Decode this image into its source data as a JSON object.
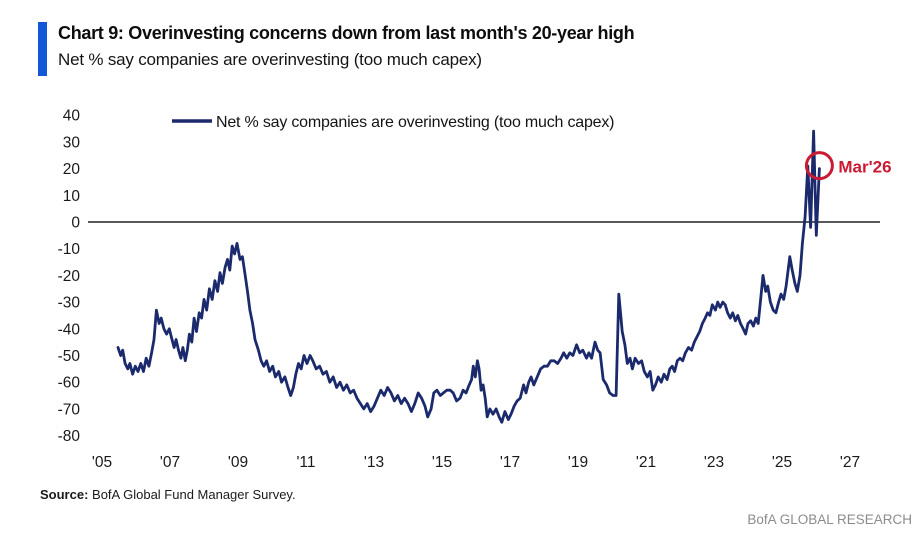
{
  "header": {
    "title": "Chart 9: Overinvesting concerns down from last month's 20-year high",
    "subtitle": "Net % say companies are overinvesting (too much capex)",
    "accent_color": "#1257d8"
  },
  "chart_data": {
    "type": "line",
    "title": "Chart 9: Overinvesting concerns down from last month's 20-year high",
    "subtitle": "Net % say companies are overinvesting (too much capex)",
    "xlabel": "",
    "ylabel": "Net %",
    "ylim": [
      -80,
      40
    ],
    "xlim": [
      2004.9,
      2027.5
    ],
    "grid": false,
    "legend_position": "top",
    "legend_label": "Net % say companies are overinvesting (too much capex)",
    "line_color": "#1b2a6c",
    "zero_line": true,
    "zero_line_color": "#58595b",
    "y_ticks": [
      40,
      30,
      20,
      10,
      0,
      -10,
      -20,
      -30,
      -40,
      -50,
      -60,
      -70,
      -80
    ],
    "x_ticks": [
      "'05",
      "'07",
      "'09",
      "'11",
      "'13",
      "'15",
      "'17",
      "'19",
      "'21",
      "'23",
      "'25",
      "'27"
    ],
    "x_tick_years": [
      2005,
      2007,
      2009,
      2011,
      2013,
      2015,
      2017,
      2019,
      2021,
      2023,
      2025,
      2027
    ],
    "annotation": {
      "label": "Mar'26",
      "x": 2026.1,
      "y": 20,
      "color": "#cb1b34"
    },
    "series": [
      {
        "name": "Net % say companies are overinvesting (too much capex)",
        "points": [
          [
            2005.47,
            -47
          ],
          [
            2005.55,
            -50
          ],
          [
            2005.61,
            -48
          ],
          [
            2005.68,
            -53
          ],
          [
            2005.76,
            -55
          ],
          [
            2005.82,
            -53
          ],
          [
            2005.9,
            -57
          ],
          [
            2005.98,
            -54
          ],
          [
            2006.06,
            -56
          ],
          [
            2006.14,
            -53
          ],
          [
            2006.22,
            -56
          ],
          [
            2006.3,
            -51
          ],
          [
            2006.38,
            -54
          ],
          [
            2006.46,
            -49
          ],
          [
            2006.53,
            -44
          ],
          [
            2006.6,
            -33
          ],
          [
            2006.68,
            -38
          ],
          [
            2006.74,
            -36
          ],
          [
            2006.82,
            -40
          ],
          [
            2006.9,
            -42
          ],
          [
            2006.98,
            -40
          ],
          [
            2007.06,
            -44
          ],
          [
            2007.12,
            -47
          ],
          [
            2007.18,
            -44
          ],
          [
            2007.25,
            -48
          ],
          [
            2007.32,
            -51
          ],
          [
            2007.38,
            -47
          ],
          [
            2007.45,
            -52
          ],
          [
            2007.51,
            -48
          ],
          [
            2007.57,
            -42
          ],
          [
            2007.64,
            -45
          ],
          [
            2007.71,
            -36
          ],
          [
            2007.78,
            -41
          ],
          [
            2007.86,
            -34
          ],
          [
            2007.93,
            -36
          ],
          [
            2008.0,
            -29
          ],
          [
            2008.08,
            -33
          ],
          [
            2008.16,
            -25
          ],
          [
            2008.24,
            -29
          ],
          [
            2008.32,
            -22
          ],
          [
            2008.4,
            -26
          ],
          [
            2008.47,
            -19
          ],
          [
            2008.54,
            -23
          ],
          [
            2008.62,
            -17
          ],
          [
            2008.69,
            -14
          ],
          [
            2008.76,
            -18
          ],
          [
            2008.83,
            -9
          ],
          [
            2008.9,
            -12
          ],
          [
            2008.97,
            -8
          ],
          [
            2009.06,
            -14
          ],
          [
            2009.13,
            -13
          ],
          [
            2009.2,
            -19
          ],
          [
            2009.28,
            -26
          ],
          [
            2009.35,
            -33
          ],
          [
            2009.43,
            -38
          ],
          [
            2009.5,
            -44
          ],
          [
            2009.6,
            -48
          ],
          [
            2009.68,
            -52
          ],
          [
            2009.76,
            -54
          ],
          [
            2009.84,
            -52
          ],
          [
            2009.93,
            -56
          ],
          [
            2010.02,
            -54
          ],
          [
            2010.1,
            -58
          ],
          [
            2010.2,
            -56
          ],
          [
            2010.28,
            -60
          ],
          [
            2010.38,
            -58
          ],
          [
            2010.47,
            -62
          ],
          [
            2010.55,
            -65
          ],
          [
            2010.63,
            -62
          ],
          [
            2010.7,
            -57
          ],
          [
            2010.78,
            -53
          ],
          [
            2010.86,
            -55
          ],
          [
            2010.94,
            -50
          ],
          [
            2011.03,
            -53
          ],
          [
            2011.12,
            -50
          ],
          [
            2011.2,
            -52
          ],
          [
            2011.3,
            -55
          ],
          [
            2011.4,
            -54
          ],
          [
            2011.5,
            -57
          ],
          [
            2011.6,
            -56
          ],
          [
            2011.7,
            -60
          ],
          [
            2011.8,
            -58
          ],
          [
            2011.9,
            -62
          ],
          [
            2012.0,
            -60
          ],
          [
            2012.1,
            -63
          ],
          [
            2012.2,
            -61
          ],
          [
            2012.3,
            -64
          ],
          [
            2012.4,
            -63
          ],
          [
            2012.5,
            -66
          ],
          [
            2012.6,
            -68
          ],
          [
            2012.7,
            -70
          ],
          [
            2012.8,
            -68
          ],
          [
            2012.9,
            -71
          ],
          [
            2013.0,
            -69
          ],
          [
            2013.1,
            -66
          ],
          [
            2013.2,
            -63
          ],
          [
            2013.3,
            -65
          ],
          [
            2013.4,
            -62
          ],
          [
            2013.5,
            -64
          ],
          [
            2013.6,
            -67
          ],
          [
            2013.7,
            -65
          ],
          [
            2013.8,
            -68
          ],
          [
            2013.9,
            -66
          ],
          [
            2014.0,
            -68
          ],
          [
            2014.1,
            -71
          ],
          [
            2014.2,
            -68
          ],
          [
            2014.3,
            -64
          ],
          [
            2014.4,
            -66
          ],
          [
            2014.5,
            -69
          ],
          [
            2014.58,
            -73
          ],
          [
            2014.68,
            -70
          ],
          [
            2014.76,
            -64
          ],
          [
            2014.85,
            -63
          ],
          [
            2014.95,
            -65
          ],
          [
            2015.04,
            -64
          ],
          [
            2015.14,
            -63
          ],
          [
            2015.24,
            -63
          ],
          [
            2015.33,
            -64
          ],
          [
            2015.43,
            -67
          ],
          [
            2015.53,
            -66
          ],
          [
            2015.62,
            -63
          ],
          [
            2015.71,
            -64
          ],
          [
            2015.8,
            -61
          ],
          [
            2015.87,
            -59
          ],
          [
            2015.92,
            -54
          ],
          [
            2015.98,
            -58
          ],
          [
            2016.04,
            -52
          ],
          [
            2016.09,
            -55
          ],
          [
            2016.15,
            -63
          ],
          [
            2016.21,
            -61
          ],
          [
            2016.27,
            -66
          ],
          [
            2016.33,
            -73
          ],
          [
            2016.41,
            -70
          ],
          [
            2016.5,
            -72
          ],
          [
            2016.59,
            -70
          ],
          [
            2016.68,
            -73
          ],
          [
            2016.76,
            -75
          ],
          [
            2016.85,
            -71
          ],
          [
            2016.95,
            -74
          ],
          [
            2017.03,
            -72
          ],
          [
            2017.12,
            -69
          ],
          [
            2017.21,
            -67
          ],
          [
            2017.3,
            -66
          ],
          [
            2017.4,
            -61
          ],
          [
            2017.47,
            -64
          ],
          [
            2017.55,
            -60
          ],
          [
            2017.62,
            -58
          ],
          [
            2017.7,
            -61
          ],
          [
            2017.8,
            -58
          ],
          [
            2017.9,
            -55
          ],
          [
            2018.0,
            -54
          ],
          [
            2018.1,
            -54
          ],
          [
            2018.2,
            -52
          ],
          [
            2018.3,
            -52
          ],
          [
            2018.4,
            -53
          ],
          [
            2018.5,
            -51
          ],
          [
            2018.58,
            -49
          ],
          [
            2018.67,
            -51
          ],
          [
            2018.76,
            -49
          ],
          [
            2018.85,
            -50
          ],
          [
            2018.96,
            -46
          ],
          [
            2019.05,
            -49
          ],
          [
            2019.14,
            -48
          ],
          [
            2019.25,
            -51
          ],
          [
            2019.32,
            -49
          ],
          [
            2019.4,
            -51
          ],
          [
            2019.5,
            -45
          ],
          [
            2019.58,
            -48
          ],
          [
            2019.65,
            -49
          ],
          [
            2019.74,
            -59
          ],
          [
            2019.84,
            -61
          ],
          [
            2019.93,
            -64
          ],
          [
            2020.03,
            -65
          ],
          [
            2020.12,
            -65
          ],
          [
            2020.2,
            -27
          ],
          [
            2020.3,
            -41
          ],
          [
            2020.38,
            -46
          ],
          [
            2020.45,
            -53
          ],
          [
            2020.53,
            -51
          ],
          [
            2020.6,
            -55
          ],
          [
            2020.68,
            -51
          ],
          [
            2020.78,
            -53
          ],
          [
            2020.87,
            -52
          ],
          [
            2020.95,
            -56
          ],
          [
            2021.04,
            -58
          ],
          [
            2021.12,
            -56
          ],
          [
            2021.2,
            -63
          ],
          [
            2021.28,
            -61
          ],
          [
            2021.36,
            -58
          ],
          [
            2021.45,
            -60
          ],
          [
            2021.53,
            -57
          ],
          [
            2021.62,
            -59
          ],
          [
            2021.7,
            -55
          ],
          [
            2021.77,
            -54
          ],
          [
            2021.84,
            -56
          ],
          [
            2021.92,
            -52
          ],
          [
            2022.0,
            -51
          ],
          [
            2022.08,
            -52
          ],
          [
            2022.16,
            -49
          ],
          [
            2022.25,
            -47
          ],
          [
            2022.34,
            -48
          ],
          [
            2022.42,
            -45
          ],
          [
            2022.5,
            -43
          ],
          [
            2022.58,
            -41
          ],
          [
            2022.66,
            -38
          ],
          [
            2022.74,
            -36
          ],
          [
            2022.81,
            -34
          ],
          [
            2022.88,
            -35
          ],
          [
            2022.95,
            -31
          ],
          [
            2023.04,
            -33
          ],
          [
            2023.11,
            -30
          ],
          [
            2023.18,
            -32
          ],
          [
            2023.26,
            -30
          ],
          [
            2023.33,
            -31
          ],
          [
            2023.4,
            -34
          ],
          [
            2023.48,
            -36
          ],
          [
            2023.55,
            -34
          ],
          [
            2023.63,
            -37
          ],
          [
            2023.7,
            -35
          ],
          [
            2023.78,
            -38
          ],
          [
            2023.86,
            -40
          ],
          [
            2023.93,
            -42
          ],
          [
            2024.0,
            -38
          ],
          [
            2024.08,
            -37
          ],
          [
            2024.16,
            -39
          ],
          [
            2024.23,
            -36
          ],
          [
            2024.3,
            -38
          ],
          [
            2024.38,
            -28
          ],
          [
            2024.44,
            -20
          ],
          [
            2024.52,
            -26
          ],
          [
            2024.58,
            -24
          ],
          [
            2024.66,
            -30
          ],
          [
            2024.74,
            -33
          ],
          [
            2024.82,
            -34
          ],
          [
            2024.9,
            -30
          ],
          [
            2024.97,
            -27
          ],
          [
            2025.05,
            -29
          ],
          [
            2025.12,
            -24
          ],
          [
            2025.17,
            -19
          ],
          [
            2025.23,
            -13
          ],
          [
            2025.3,
            -18
          ],
          [
            2025.38,
            -23
          ],
          [
            2025.45,
            -26
          ],
          [
            2025.53,
            -20
          ],
          [
            2025.6,
            -8
          ],
          [
            2025.68,
            2
          ],
          [
            2025.76,
            21
          ],
          [
            2025.84,
            -2
          ],
          [
            2025.93,
            34
          ],
          [
            2026.01,
            -5
          ],
          [
            2026.1,
            20
          ]
        ]
      }
    ]
  },
  "footer": {
    "source_label": "Source:",
    "source_text": "BofA Global Fund Manager Survey.",
    "watermark": "BofA GLOBAL RESEARCH"
  }
}
